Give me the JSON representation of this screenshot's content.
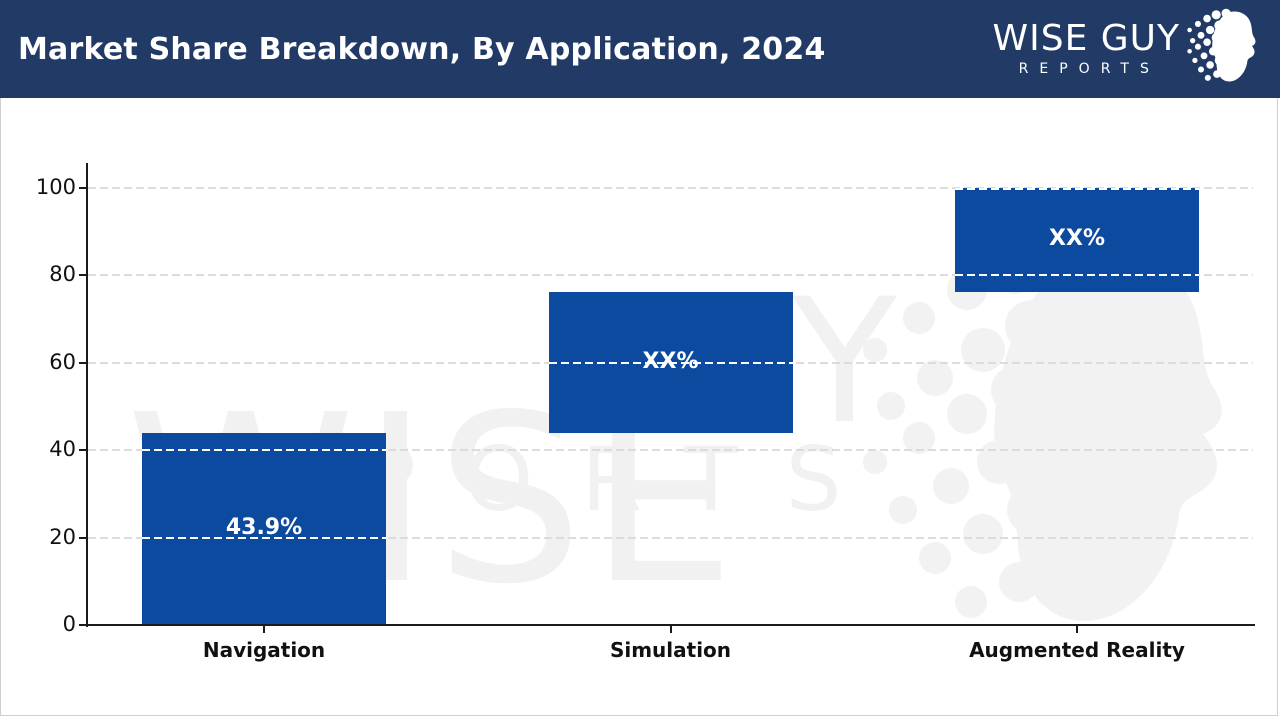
{
  "header": {
    "title": "Market Share Breakdown, By Application, 2024",
    "logo": {
      "brand": "WISE GUY",
      "sub": "REPORTS"
    }
  },
  "watermark": {
    "word1": "WISE",
    "word2": "Y",
    "word3": "REPORTS"
  },
  "chart_data": {
    "type": "bar",
    "subtype": "waterfall",
    "title": "Market Share Breakdown, By Application, 2024",
    "categories": [
      "Navigation",
      "Simulation",
      "Augmented Reality"
    ],
    "segments": [
      {
        "category": "Navigation",
        "start": 0,
        "end": 43.9,
        "label": "43.9%"
      },
      {
        "category": "Simulation",
        "start": 43.9,
        "end": 76.1,
        "label": "XX%"
      },
      {
        "category": "Augmented Reality",
        "start": 76.1,
        "end": 100,
        "label": "XX%"
      }
    ],
    "ylim": [
      0,
      105
    ],
    "yticks": [
      0,
      20,
      40,
      60,
      80,
      100
    ],
    "grid": true,
    "legend": "none",
    "bar_color": "#0b4a9e",
    "bar_label_color": "#ffffff"
  },
  "colors": {
    "header_bg": "#213a66",
    "grid": "#dcdcdc",
    "axis": "#1a1a1a",
    "watermark": "#f1f1f1"
  }
}
